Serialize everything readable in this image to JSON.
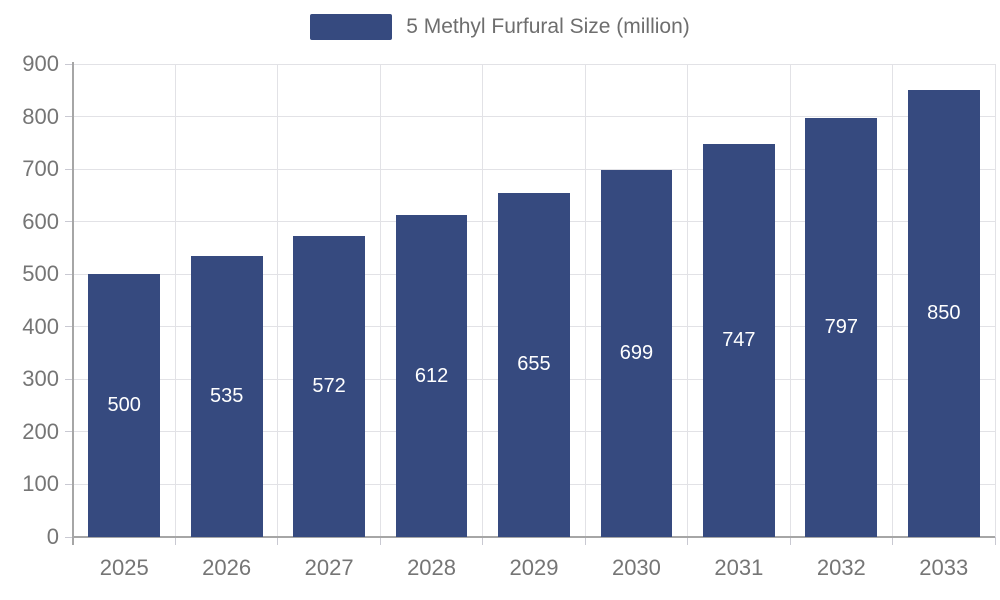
{
  "chart_data": {
    "type": "bar",
    "title": "",
    "legend": "5 Methyl Furfural Size (million)",
    "categories": [
      "2025",
      "2026",
      "2027",
      "2028",
      "2029",
      "2030",
      "2031",
      "2032",
      "2033"
    ],
    "series": [
      {
        "name": "5 Methyl Furfural Size (million)",
        "values": [
          500,
          535,
          572,
          612,
          655,
          699,
          747,
          797,
          850
        ]
      }
    ],
    "value_labels": [
      "500",
      "535",
      "572",
      "612",
      "655",
      "699",
      "747",
      "797",
      "850"
    ],
    "xlabel": "",
    "ylabel": "",
    "ylim": [
      0,
      900
    ],
    "ytick_step": 100,
    "y_ticks": [
      "0",
      "100",
      "200",
      "300",
      "400",
      "500",
      "600",
      "700",
      "800",
      "900"
    ],
    "grid": true,
    "legend_position": "top",
    "colors": {
      "bar": "#364a7f",
      "value_label": "#ffffff",
      "axis_label": "#757575",
      "legend_text": "#6e6e6e",
      "grid_line": "#e2e2e6",
      "axis_line": "#a6a6a6",
      "tick_line": "#c9c9d2",
      "background": "#ffffff"
    }
  }
}
